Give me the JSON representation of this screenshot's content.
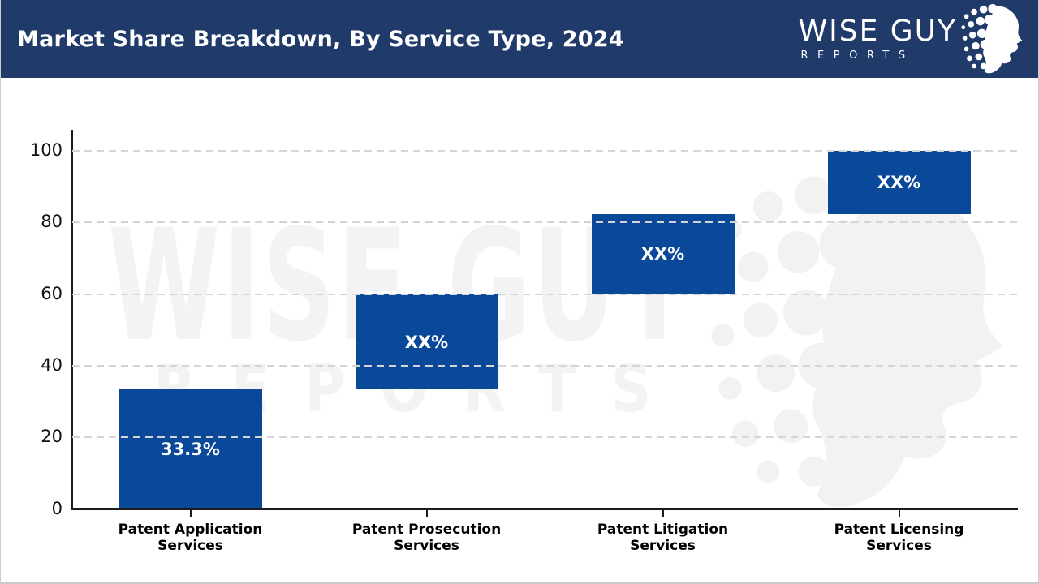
{
  "header": {
    "title": "Market Share Breakdown, By Service Type, 2024",
    "bg_color": "#203a69",
    "logo": {
      "name": "WISE GUY",
      "sub": "REPORTS"
    }
  },
  "watermark": {
    "line1": "WISE GUY",
    "line2": "REPORTS"
  },
  "chart_data": {
    "type": "bar",
    "subtype": "waterfall-stacked-breakdown",
    "title": "Market Share Breakdown, By Service Type, 2024",
    "categories": [
      "Patent Application\nServices",
      "Patent Prosecution\nServices",
      "Patent Litigation\nServices",
      "Patent Licensing\nServices"
    ],
    "segments": [
      {
        "category": "Patent Application Services",
        "start": 0,
        "end": 33.3,
        "label": "33.3%"
      },
      {
        "category": "Patent Prosecution Services",
        "start": 33.3,
        "end": 60,
        "label": "XX%"
      },
      {
        "category": "Patent Litigation Services",
        "start": 60,
        "end": 82.3,
        "label": "XX%"
      },
      {
        "category": "Patent Licensing Services",
        "start": 82.3,
        "end": 100,
        "label": "XX%"
      }
    ],
    "yticks": [
      0,
      20,
      40,
      60,
      80,
      100
    ],
    "ylim": [
      0,
      107
    ],
    "xlabel": "",
    "ylabel": "",
    "bar_color": "#0a4899",
    "grid": "horizontal dashed, drawn above bars",
    "legend": "none"
  }
}
